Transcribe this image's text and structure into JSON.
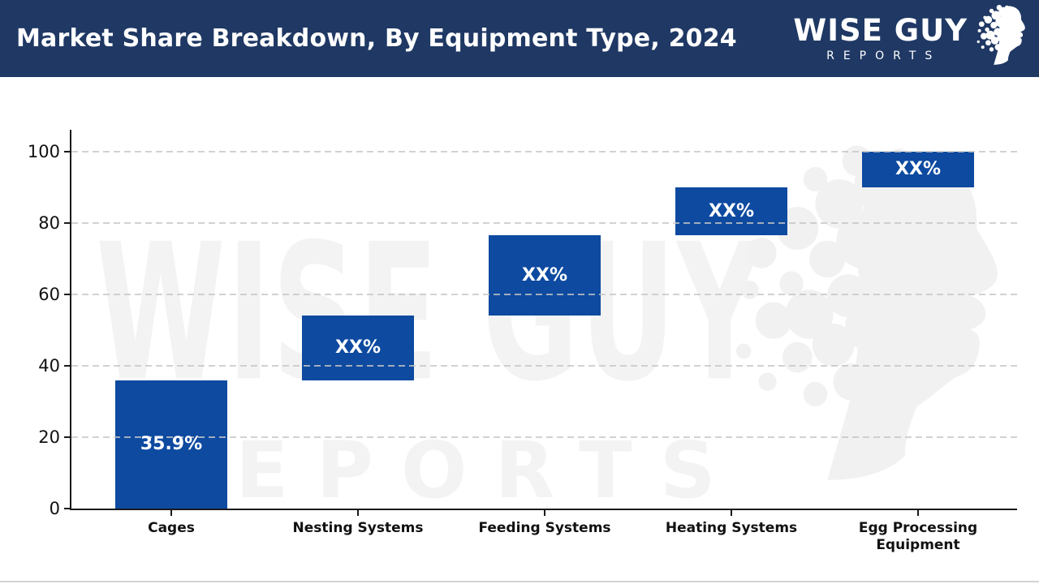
{
  "header": {
    "title": "Market Share Breakdown, By Equipment Type, 2024",
    "logo": {
      "line1": "WISE GUY",
      "line2": "REPORTS"
    }
  },
  "watermark": {
    "line1": "WISE GUY",
    "line2": "REPORTS"
  },
  "chart_data": {
    "type": "bar",
    "subtype": "waterfall-stepped",
    "title": "Market Share Breakdown, By Equipment Type, 2024",
    "categories": [
      "Cages",
      "Nesting Systems",
      "Feeding Systems",
      "Heating Systems",
      "Egg Processing Equipment"
    ],
    "segments": [
      {
        "category": "Cages",
        "start": 0,
        "end": 35.9,
        "label": "35.9%"
      },
      {
        "category": "Nesting Systems",
        "start": 35.9,
        "end": 54,
        "label": "XX%"
      },
      {
        "category": "Feeding Systems",
        "start": 54,
        "end": 76.5,
        "label": "XX%"
      },
      {
        "category": "Heating Systems",
        "start": 76.5,
        "end": 90,
        "label": "XX%"
      },
      {
        "category": "Egg Processing Equipment",
        "start": 90,
        "end": 100,
        "label": "XX%"
      }
    ],
    "yticks": [
      0,
      20,
      40,
      60,
      80,
      100
    ],
    "ylim": [
      0,
      106
    ],
    "xlabel": "",
    "ylabel": "",
    "grid": "horizontal-dashed",
    "legend_position": "none",
    "bar_color": "#0D4AA0",
    "bar_label_color": "#FFFFFF"
  },
  "colors": {
    "header_bg": "#1F3864",
    "axis": "#1A1A1A",
    "grid_line": "#C6C6C6",
    "watermark": "#F2F2F2",
    "bottom_rule": "#D4D4D4",
    "background": "#FFFFFF"
  }
}
